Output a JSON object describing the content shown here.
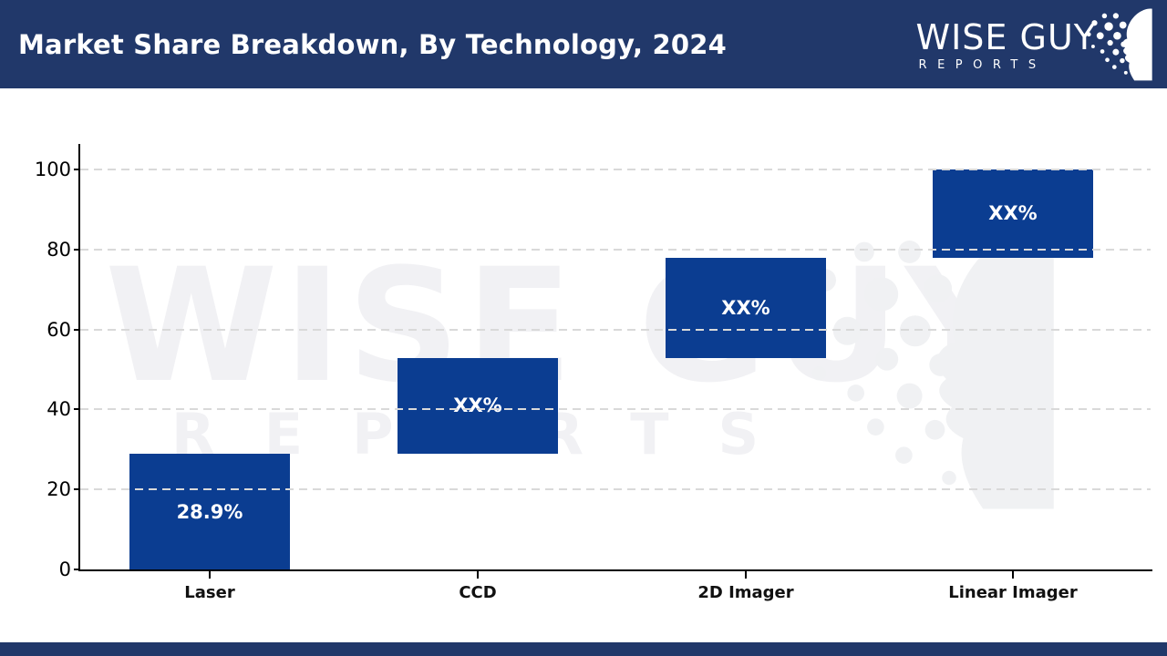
{
  "header": {
    "title": "Market Share Breakdown, By Technology, 2024"
  },
  "logo": {
    "line1": "WISE GUY",
    "line2": "REPORTS"
  },
  "watermark": {
    "line1": "WISE GUY",
    "line2": "REPORTS"
  },
  "chart_data": {
    "type": "bar",
    "subtype": "waterfall",
    "title": "Market Share Breakdown, By Technology, 2024",
    "categories": [
      "Laser",
      "CCD",
      "2D Imager",
      "Linear Imager"
    ],
    "series": [
      {
        "name": "Market Share",
        "segments": [
          {
            "category": "Laser",
            "start": 0,
            "end": 28.9,
            "label": "28.9%"
          },
          {
            "category": "CCD",
            "start": 28.9,
            "end": 52.9,
            "label": "XX%"
          },
          {
            "category": "2D Imager",
            "start": 52.9,
            "end": 78.0,
            "label": "XX%"
          },
          {
            "category": "Linear Imager",
            "start": 78.0,
            "end": 100,
            "label": "XX%"
          }
        ]
      }
    ],
    "ylim": [
      0,
      100
    ],
    "yticks": [
      0,
      20,
      40,
      60,
      80,
      100
    ],
    "grid": "dashed-horizontal-over-bars",
    "legend": "none",
    "bar_color": "#0b3d91",
    "bar_label_color": "#ffffff"
  },
  "colors": {
    "header_bg": "#21386a",
    "footer_bg": "#21386a",
    "bar": "#0b3d91",
    "grid": "#d9d9d9",
    "axis": "#000000",
    "watermark": "#f1f1f4"
  }
}
